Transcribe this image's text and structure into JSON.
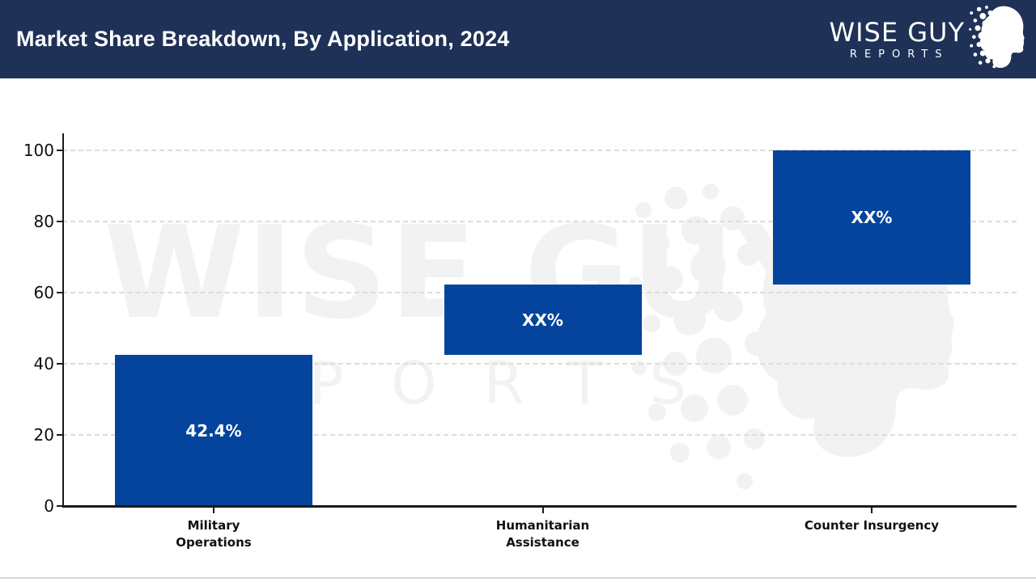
{
  "header": {
    "title": "Market Share Breakdown, By Application, 2024",
    "logo": {
      "line1": "WISE GUY",
      "line2": "REPORTS"
    }
  },
  "watermark": {
    "line1": "WISE GUY",
    "line2": "REPORTS"
  },
  "chart_data": {
    "type": "bar",
    "subtype": "floating-segment waterfall of market share",
    "title": "Market Share Breakdown, By Application, 2024",
    "categories": [
      "Military Operations",
      "Humanitarian Assistance",
      "Counter Insurgency"
    ],
    "category_label_lines": [
      [
        "Military",
        "Operations"
      ],
      [
        "Humanitarian",
        "Assistance"
      ],
      [
        "Counter Insurgency"
      ]
    ],
    "bars": [
      {
        "category": "Military Operations",
        "start": 0,
        "end": 42.4,
        "label": "42.4%"
      },
      {
        "category": "Humanitarian Assistance",
        "start": 42.4,
        "end": 62.3,
        "label": "XX%"
      },
      {
        "category": "Counter Insurgency",
        "start": 62.3,
        "end": 100,
        "label": "XX%"
      }
    ],
    "ylim": [
      0,
      100
    ],
    "yticks": [
      0,
      20,
      40,
      60,
      80,
      100
    ],
    "grid": "horizontal dashed",
    "legend": "none",
    "bar_color": "#04449c",
    "bar_label_color": "#ffffff"
  },
  "colors": {
    "header_bg": "#1f3156",
    "bar": "#04449c",
    "axis": "#1a1a1a",
    "grid": "#dcdcdc",
    "watermark": "#f2f2f2"
  }
}
